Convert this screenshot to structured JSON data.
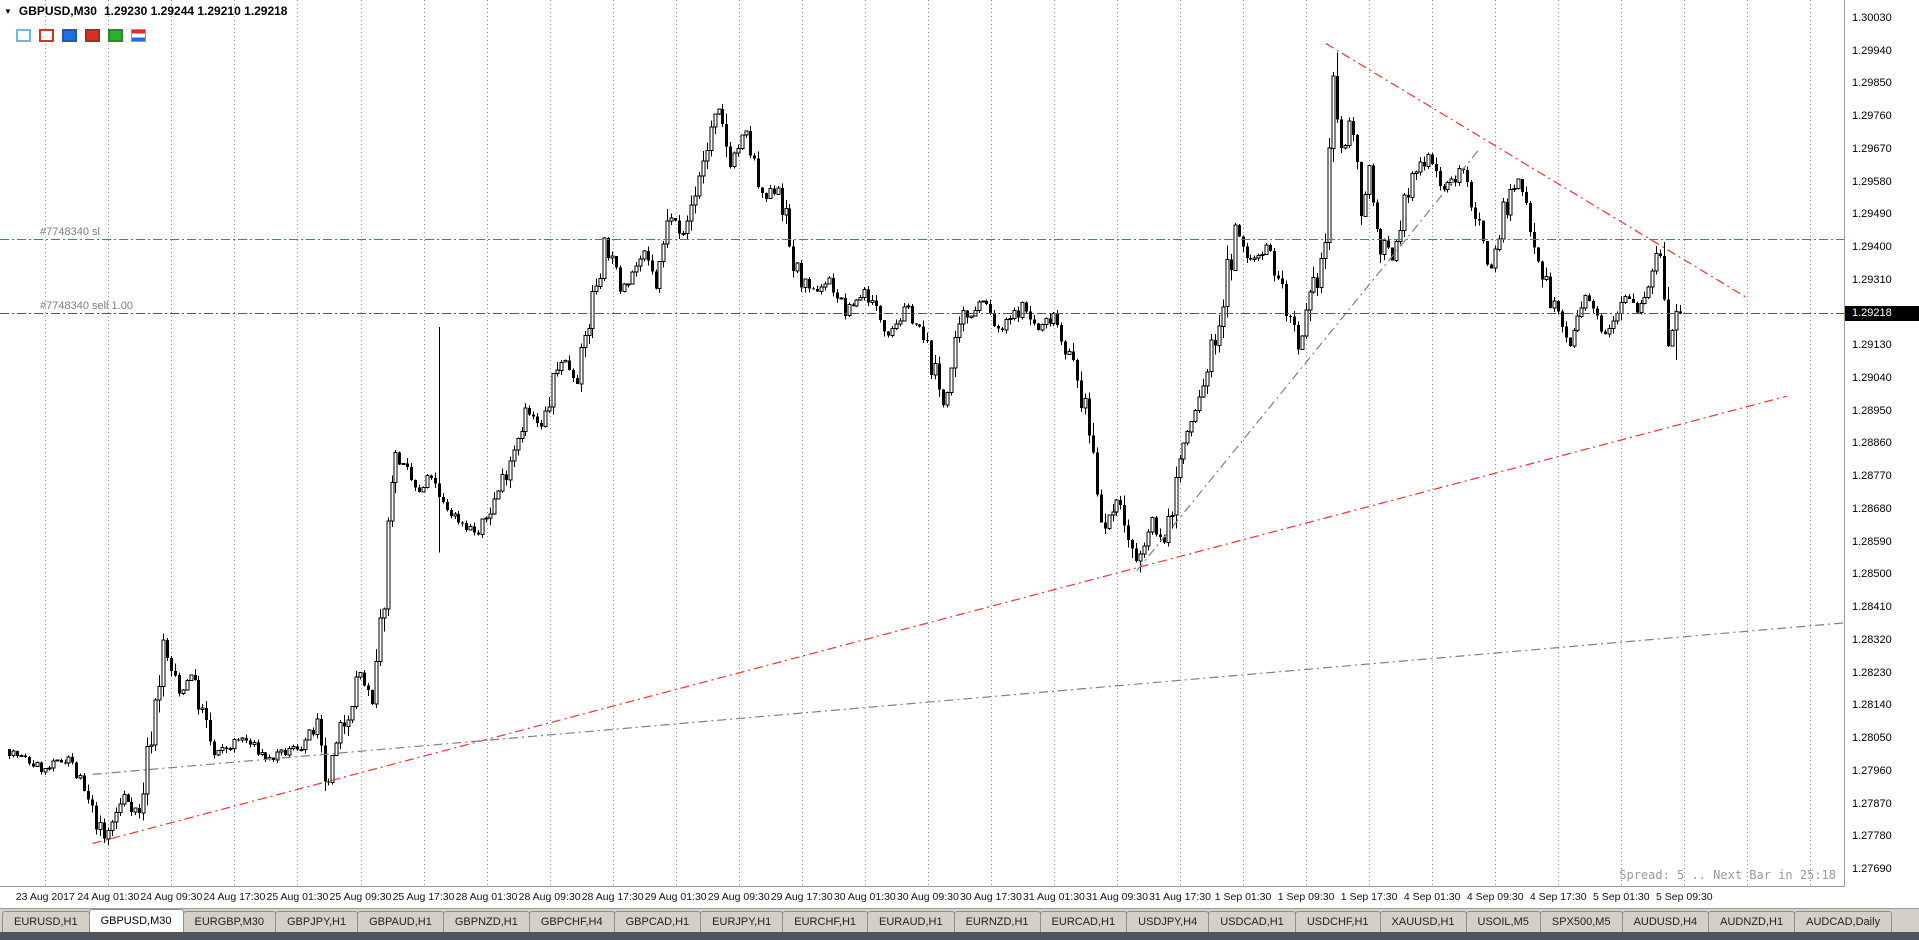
{
  "header": {
    "dropdown_icon": "▼",
    "symbol_title": "GBPUSD,M30",
    "ohlc": "1.29230 1.29244 1.29210 1.29218"
  },
  "toolbar": {
    "buttons": [
      {
        "name": "swatch-white-blue-outline",
        "fill": "#ffffff",
        "border": "#6fb7e8"
      },
      {
        "name": "swatch-white-red-outline",
        "fill": "#ffffff",
        "border": "#d93025"
      },
      {
        "name": "swatch-blue",
        "fill": "#1f6fe0",
        "border": "#1a5bb8"
      },
      {
        "name": "swatch-red",
        "fill": "#d93025",
        "border": "#b3271e"
      },
      {
        "name": "swatch-green",
        "fill": "#2fae2f",
        "border": "#268c26"
      },
      {
        "name": "swatch-flag",
        "stripes": [
          "#d93025",
          "#ffffff",
          "#1f6fe0"
        ],
        "border": "#9a9a9a"
      }
    ]
  },
  "orders": {
    "sl_label": "#7748340 sl",
    "sl_price": 1.29422,
    "sl_color": "#e83c3c",
    "sell_label": "#7748340 sell 1.00",
    "sell_price": 1.29218,
    "sell_color": "#008f00",
    "line_dash": "9,3,2,3"
  },
  "status": {
    "spread_text": "Spread: 5 .. Next Bar in 25:18"
  },
  "price_scale": {
    "current_price": "1.29218",
    "labels": [
      "1.30030",
      "1.29940",
      "1.29850",
      "1.29760",
      "1.29670",
      "1.29580",
      "1.29490",
      "1.29400",
      "1.29310",
      "1.29220",
      "1.29130",
      "1.29040",
      "1.28950",
      "1.28860",
      "1.28770",
      "1.28680",
      "1.28590",
      "1.28500",
      "1.28410",
      "1.28320",
      "1.28230",
      "1.28140",
      "1.28050",
      "1.27960",
      "1.27870",
      "1.27780",
      "1.27690"
    ]
  },
  "time_axis": {
    "labels": [
      "23 Aug 2017",
      "24 Aug 01:30",
      "24 Aug 09:30",
      "24 Aug 17:30",
      "25 Aug 01:30",
      "25 Aug 09:30",
      "25 Aug 17:30",
      "28 Aug 01:30",
      "28 Aug 09:30",
      "28 Aug 17:30",
      "29 Aug 01:30",
      "29 Aug 09:30",
      "29 Aug 17:30",
      "30 Aug 01:30",
      "30 Aug 09:30",
      "30 Aug 17:30",
      "31 Aug 01:30",
      "31 Aug 09:30",
      "31 Aug 17:30",
      "1 Sep 01:30",
      "1 Sep 09:30",
      "1 Sep 17:30",
      "4 Sep 01:30",
      "4 Sep 09:30",
      "4 Sep 17:30",
      "5 Sep 01:30",
      "5 Sep 09:30"
    ]
  },
  "tabs": {
    "active": "GBPUSD,M30",
    "items": [
      "EURUSD,H1",
      "GBPUSD,M30",
      "EURGBP,M30",
      "GBPJPY,H1",
      "GBPAUD,H1",
      "GBPNZD,H1",
      "GBPCHF,H4",
      "GBPCAD,H1",
      "EURJPY,H1",
      "EURCHF,H1",
      "EURAUD,H1",
      "EURNZD,H1",
      "EURCAD,H1",
      "USDJPY,H4",
      "USDCAD,H1",
      "USDCHF,H1",
      "XAUUSD,H1",
      "USOIL,M5",
      "SPX500,M5",
      "AUDUSD,H4",
      "AUDNZD,H1",
      "AUDCAD,Daily"
    ]
  },
  "chart_data": {
    "type": "candlestick",
    "symbol": "GBPUSD",
    "timeframe": "M30",
    "price_max": 1.3003,
    "price_min": 1.2769,
    "price_step": 0.0009,
    "bar_count": 425,
    "bars_per_gridline": 16,
    "first_gridline_bar": 9,
    "last_close": 1.29218,
    "seed": 7,
    "up_color": "#ffffff",
    "down_color": "#000000",
    "wick_color": "#000000",
    "grid_color": "#909090",
    "waypoints": [
      [
        0,
        1.2802
      ],
      [
        10,
        1.2796
      ],
      [
        16,
        1.28
      ],
      [
        21,
        1.2787
      ],
      [
        25,
        1.2777
      ],
      [
        30,
        1.2789
      ],
      [
        34,
        1.2784
      ],
      [
        40,
        1.283
      ],
      [
        44,
        1.2817
      ],
      [
        47,
        1.2823
      ],
      [
        53,
        1.28
      ],
      [
        60,
        1.2805
      ],
      [
        67,
        1.2799
      ],
      [
        75,
        1.2803
      ],
      [
        79,
        1.2808
      ],
      [
        81,
        1.2789
      ],
      [
        86,
        1.281
      ],
      [
        90,
        1.2823
      ],
      [
        93,
        1.2813
      ],
      [
        96,
        1.2845
      ],
      [
        98,
        1.288
      ],
      [
        100,
        1.2881
      ],
      [
        105,
        1.2872
      ],
      [
        108,
        1.2877
      ],
      [
        110,
        1.287
      ],
      [
        114,
        1.2866
      ],
      [
        120,
        1.2861
      ],
      [
        125,
        1.2873
      ],
      [
        132,
        1.2895
      ],
      [
        136,
        1.289
      ],
      [
        141,
        1.291
      ],
      [
        145,
        1.2904
      ],
      [
        152,
        1.2941
      ],
      [
        156,
        1.2929
      ],
      [
        162,
        1.2938
      ],
      [
        165,
        1.2929
      ],
      [
        169,
        1.2951
      ],
      [
        172,
        1.2943
      ],
      [
        179,
        1.2972
      ],
      [
        181,
        1.2977
      ],
      [
        184,
        1.2964
      ],
      [
        188,
        1.2971
      ],
      [
        192,
        1.2952
      ],
      [
        196,
        1.2957
      ],
      [
        200,
        1.2935
      ],
      [
        204,
        1.2927
      ],
      [
        209,
        1.2931
      ],
      [
        213,
        1.2922
      ],
      [
        218,
        1.2928
      ],
      [
        224,
        1.2917
      ],
      [
        229,
        1.2923
      ],
      [
        234,
        1.2912
      ],
      [
        238,
        1.2897
      ],
      [
        243,
        1.292
      ],
      [
        248,
        1.2926
      ],
      [
        252,
        1.2916
      ],
      [
        258,
        1.2924
      ],
      [
        262,
        1.2917
      ],
      [
        266,
        1.2922
      ],
      [
        271,
        1.2907
      ],
      [
        275,
        1.289
      ],
      [
        279,
        1.2862
      ],
      [
        282,
        1.2872
      ],
      [
        287,
        1.2852
      ],
      [
        291,
        1.2864
      ],
      [
        294,
        1.2858
      ],
      [
        298,
        1.2882
      ],
      [
        303,
        1.2898
      ],
      [
        308,
        1.292
      ],
      [
        312,
        1.2944
      ],
      [
        316,
        1.2936
      ],
      [
        320,
        1.2941
      ],
      [
        324,
        1.2928
      ],
      [
        328,
        1.291
      ],
      [
        332,
        1.2928
      ],
      [
        335,
        1.2941
      ],
      [
        337,
        1.2988
      ],
      [
        339,
        1.2962
      ],
      [
        341,
        1.2976
      ],
      [
        344,
        1.295
      ],
      [
        346,
        1.2962
      ],
      [
        348,
        1.2944
      ],
      [
        352,
        1.2936
      ],
      [
        355,
        1.2952
      ],
      [
        358,
        1.2961
      ],
      [
        361,
        1.2966
      ],
      [
        365,
        1.2956
      ],
      [
        370,
        1.2961
      ],
      [
        374,
        1.2946
      ],
      [
        377,
        1.2934
      ],
      [
        380,
        1.295
      ],
      [
        384,
        1.2958
      ],
      [
        387,
        1.2948
      ],
      [
        389,
        1.2938
      ],
      [
        392,
        1.2926
      ],
      [
        397,
        1.2913
      ],
      [
        401,
        1.2926
      ],
      [
        406,
        1.2917
      ],
      [
        411,
        1.2928
      ],
      [
        414,
        1.2923
      ],
      [
        418,
        1.2932
      ],
      [
        420,
        1.2939
      ],
      [
        422,
        1.2912
      ],
      [
        424,
        1.29218
      ]
    ],
    "spikes": [
      {
        "bar": 25,
        "low": 1.27755
      },
      {
        "bar": 109,
        "high": 1.2918,
        "low": 1.2856
      },
      {
        "bar": 181,
        "high": 1.2979
      },
      {
        "bar": 287,
        "low": 1.28505
      },
      {
        "bar": 337,
        "high": 1.29935
      },
      {
        "bar": 423,
        "low": 1.2909
      }
    ],
    "trendlines": [
      {
        "name": "descending-resistance-trendline",
        "color": "#ff2e2e",
        "dash": "9,4,2,4",
        "points": [
          [
            334,
            1.2996
          ],
          [
            441,
            1.2926
          ]
        ]
      },
      {
        "name": "ascending-support-trendline",
        "color": "#ff2e2e",
        "dash": "9,4,2,4",
        "points": [
          [
            21,
            1.2776
          ],
          [
            451,
            1.2899
          ]
        ]
      },
      {
        "name": "long-term-channel-trendline",
        "color": "#808080",
        "dash": "9,4,2,4",
        "points": [
          [
            21,
            1.2795
          ],
          [
            469,
            1.2837
          ]
        ]
      },
      {
        "name": "rising-wedge-trendline",
        "color": "#808080",
        "dash": "9,4,2,4",
        "points": [
          [
            286,
            1.2851
          ],
          [
            373,
            1.2967
          ]
        ]
      }
    ]
  }
}
